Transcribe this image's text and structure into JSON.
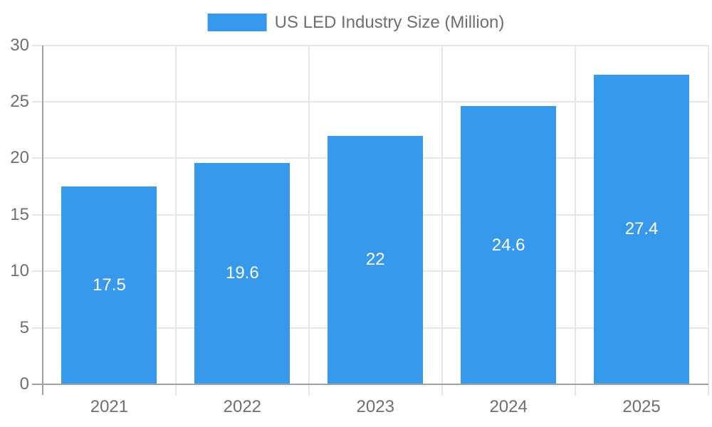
{
  "chart_data": {
    "type": "bar",
    "series_name": "US LED Industry Size (Million)",
    "categories": [
      "2021",
      "2022",
      "2023",
      "2024",
      "2025"
    ],
    "values": [
      17.5,
      19.6,
      22,
      24.6,
      27.4
    ],
    "value_labels": [
      "17.5",
      "19.6",
      "22",
      "24.6",
      "27.4"
    ],
    "ylim": [
      0,
      30
    ],
    "y_ticks": [
      0,
      5,
      10,
      15,
      20,
      25,
      30
    ],
    "grid": true,
    "legend_position": "top",
    "value_label_position": "center-of-bar",
    "colors": {
      "bar": "#3799EB",
      "grid_line": "#e6e6e6",
      "axis_line": "#a0a0a0",
      "tick_label": "#6f6f6f",
      "legend_text": "#6f6f6f",
      "value_label": "#ffffff",
      "background": "#ffffff"
    }
  }
}
